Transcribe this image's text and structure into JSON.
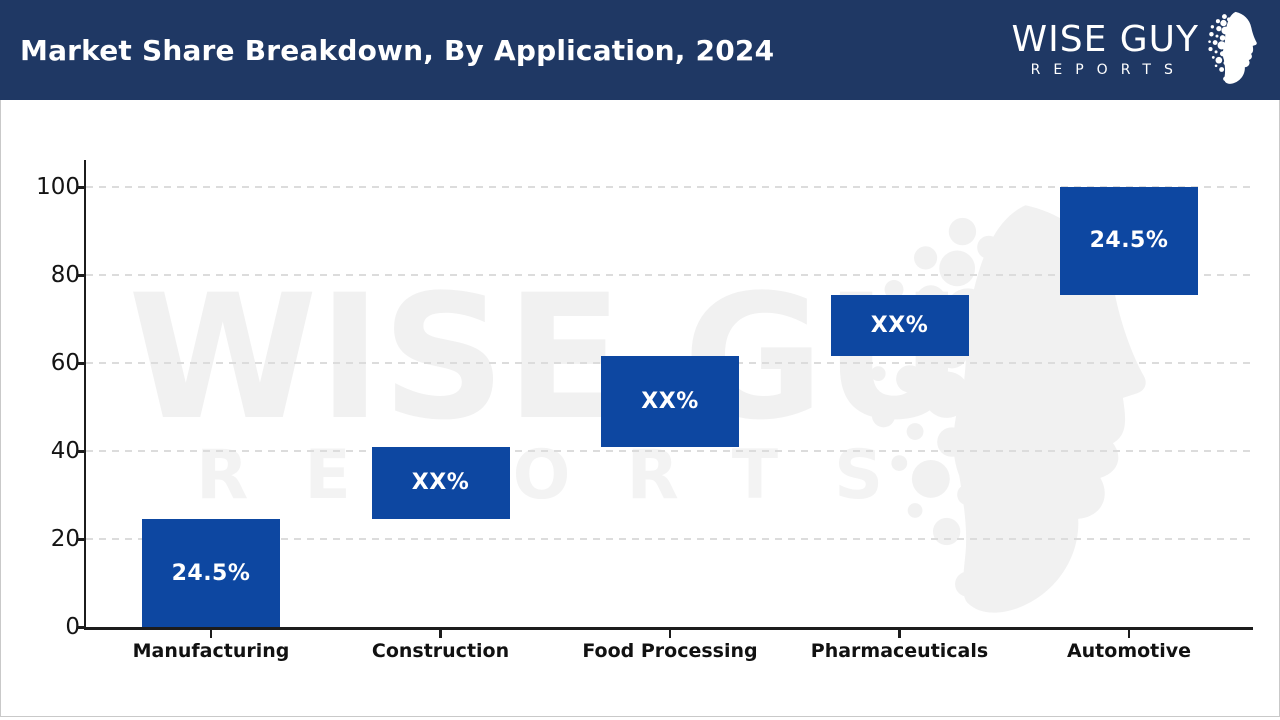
{
  "header": {
    "title": "Market Share Breakdown, By Application, 2024",
    "bg_color": "#1f3864",
    "logo": {
      "wordmark": "WISE GUY",
      "subtitle": "REPORTS"
    }
  },
  "watermark": {
    "line1": "WISE GUY",
    "line2": "REPORTS"
  },
  "chart_data": {
    "type": "bar",
    "variant": "floating_segment_waterfall",
    "title": "Market Share Breakdown, By Application, 2024",
    "categories": [
      "Manufacturing",
      "Construction",
      "Food Processing",
      "Pharmaceuticals",
      "Automotive"
    ],
    "segments": [
      {
        "category": "Manufacturing",
        "start": 0,
        "end": 24.5,
        "label": "24.5%"
      },
      {
        "category": "Construction",
        "start": 24.5,
        "end": 41,
        "label": "XX%"
      },
      {
        "category": "Food Processing",
        "start": 41,
        "end": 61.5,
        "label": "XX%"
      },
      {
        "category": "Pharmaceuticals",
        "start": 61.5,
        "end": 75.5,
        "label": "XX%"
      },
      {
        "category": "Automotive",
        "start": 75.5,
        "end": 100,
        "label": "24.5%"
      }
    ],
    "xlabel": "",
    "ylabel": "",
    "ylim": [
      0,
      106
    ],
    "yticks": [
      0,
      20,
      40,
      60,
      80,
      100
    ],
    "grid": "horizontal dashed",
    "legend": "none",
    "bar_color": "#0d47a1",
    "bar_label_color": "#ffffff",
    "axis_color": "#1c1c1c",
    "gridline_color": "#dcdcdc"
  }
}
